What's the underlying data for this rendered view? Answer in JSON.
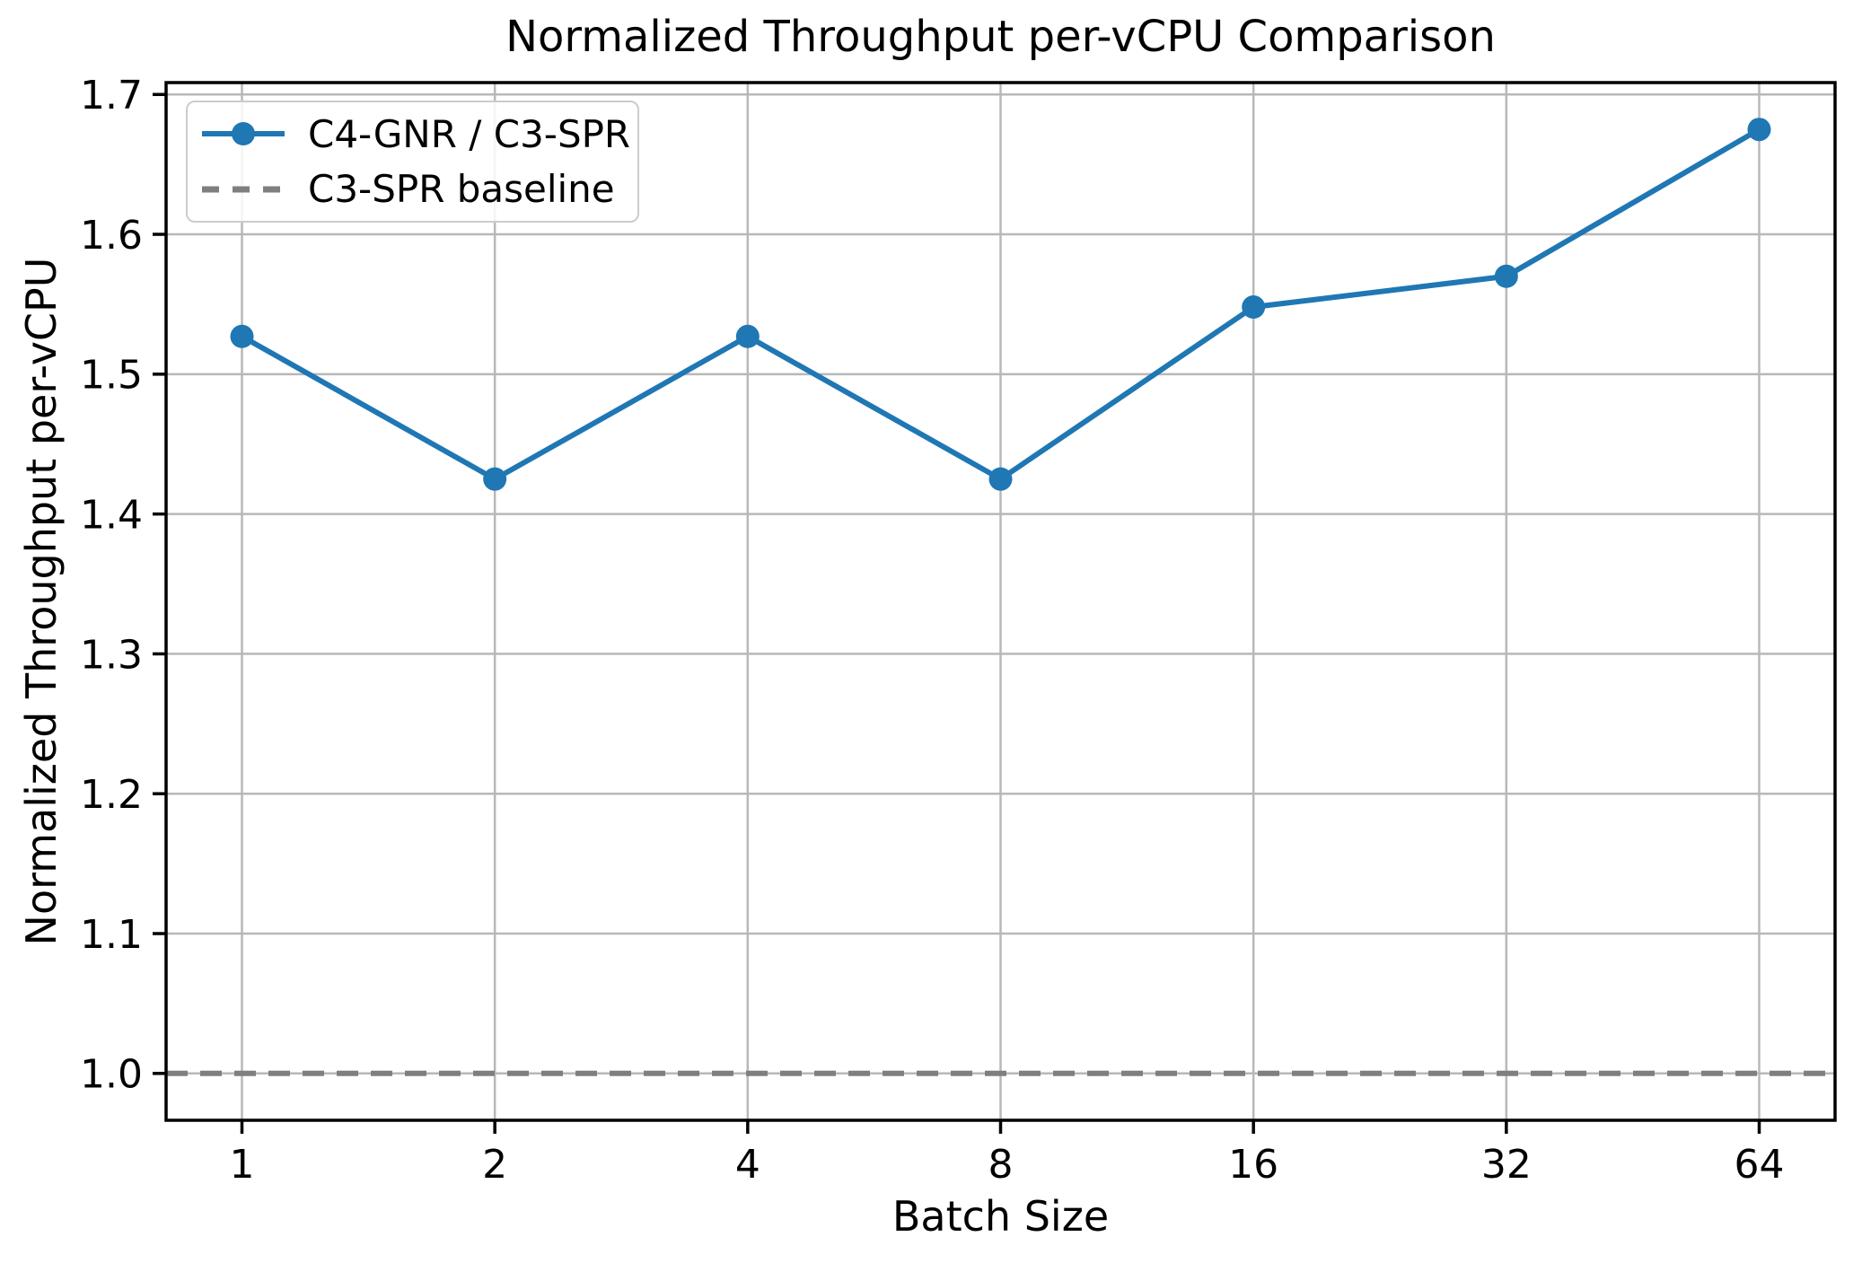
{
  "chart_data": {
    "type": "line",
    "title": "Normalized Throughput per-vCPU Comparison",
    "xlabel": "Batch Size",
    "ylabel": "Normalized Throughput per-vCPU",
    "x_scale": "log2",
    "categories": [
      1,
      2,
      4,
      8,
      16,
      32,
      64
    ],
    "xtick_labels": [
      "1",
      "2",
      "4",
      "8",
      "16",
      "32",
      "64"
    ],
    "yticks": [
      1.0,
      1.1,
      1.2,
      1.3,
      1.4,
      1.5,
      1.6,
      1.7
    ],
    "ytick_labels": [
      "1.0",
      "1.1",
      "1.2",
      "1.3",
      "1.4",
      "1.5",
      "1.6",
      "1.7"
    ],
    "ylim": [
      0.9665,
      1.7085
    ],
    "xlim_log2": [
      -0.3,
      6.3
    ],
    "grid": true,
    "legend_position": "upper-left",
    "series": [
      {
        "name": "C4-GNR / C3-SPR",
        "type": "line-markers",
        "color": "#1f77b4",
        "values": [
          1.527,
          1.425,
          1.527,
          1.425,
          1.548,
          1.57,
          1.675
        ]
      },
      {
        "name": "C3-SPR baseline",
        "type": "baseline",
        "color": "#7f7f7f",
        "dashed": true,
        "value": 1.0
      }
    ],
    "colors": {
      "grid": "#b8b8b8",
      "axis": "#000000",
      "background": "#ffffff"
    }
  }
}
